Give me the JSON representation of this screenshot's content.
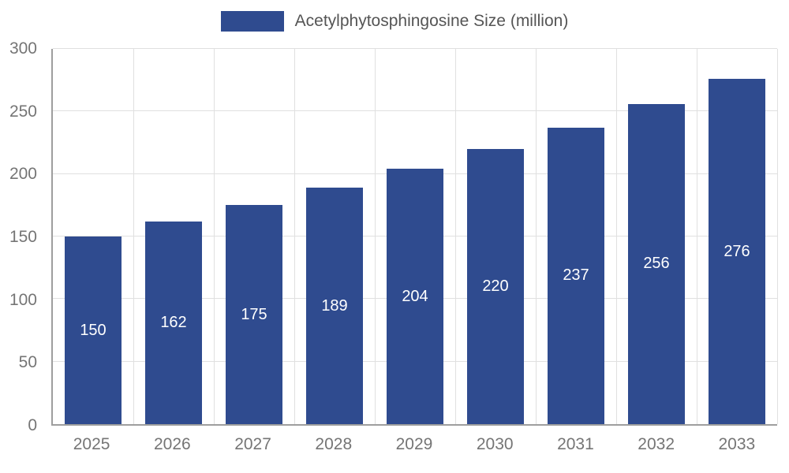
{
  "legend": {
    "label": "Acetylphytosphingosine Size (million)",
    "swatch_color": "#2f4b8f"
  },
  "chart_data": {
    "type": "bar",
    "title": "Acetylphytosphingosine Size (million)",
    "categories": [
      "2025",
      "2026",
      "2027",
      "2028",
      "2029",
      "2030",
      "2031",
      "2032",
      "2033"
    ],
    "values": [
      150,
      162,
      175,
      189,
      204,
      220,
      237,
      256,
      276
    ],
    "xlabel": "",
    "ylabel": "",
    "ylim": [
      0,
      300
    ],
    "ytick_step": 50,
    "bar_color": "#2f4b8f",
    "value_label_color": "#ffffff",
    "grid": true,
    "legend_position": "top-center"
  }
}
